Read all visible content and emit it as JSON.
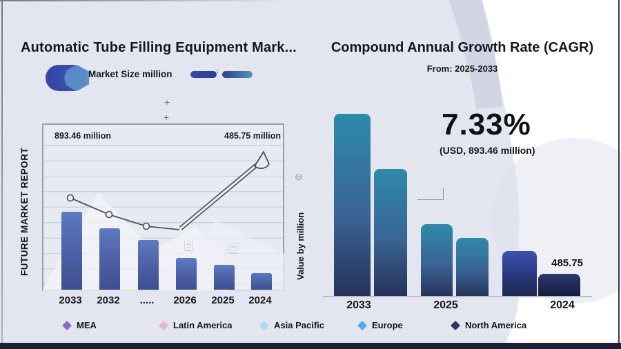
{
  "header_left": {
    "title": "Automatic Tube Filling Equipment Mark...",
    "series_label": "Market Size million",
    "colon": ":"
  },
  "header_right": {
    "title": "Compound Annual Growth Rate (CAGR)",
    "subtitle": "From: 2025-2033",
    "cagr_value": "7.33%",
    "cagr_note": "(USD, 893.46 million)",
    "end_value_label": "485.75"
  },
  "left_chart": {
    "annotation_left": "893.46 million",
    "annotation_right": "485.75 million",
    "ylabel": "Value by million",
    "watermark": "FUTURE MARKET REPORT",
    "plus_top": "+",
    "plus_bottom": "+",
    "minus_icon": "⊖"
  },
  "legend": {
    "items": [
      {
        "label": "MEA",
        "color": "#8a6cbe"
      },
      {
        "label": "Latin America",
        "color": "#dcb6de"
      },
      {
        "label": "Asia Pacific",
        "color": "#a9dcf2"
      },
      {
        "label": "Europe",
        "color": "#58a9e9"
      },
      {
        "label": "North America",
        "color": "#2c3763"
      }
    ]
  },
  "colors": {
    "background": "#e3e5ef",
    "left_bar_top": "#5c7ac2",
    "left_bar_bottom": "#3e4f90",
    "right_bar_teal_top": "#2f8aaa",
    "right_bar_navy_bottom": "#131c3a",
    "footer_strip": "#1d2332"
  },
  "chart_data": [
    {
      "type": "bar",
      "title": "Automatic Tube Filling Equipment Market - Market Size million",
      "categories": [
        "2033",
        "2032",
        ".....",
        "2026",
        "2025",
        "2024"
      ],
      "values": [
        893.46,
        783,
        706,
        586,
        541,
        485.75
      ],
      "values_note": "Only 2033 (893.46 million) and 2024 (485.75 million) are labeled; intermediate values estimated from bar heights",
      "annotations": [
        "893.46 million",
        "485.75 million"
      ],
      "xlabel": "",
      "ylabel": "Value by million",
      "trendline": "markers descend across 2033-2026 then an outlined arrow rises sharply toward the 485.75 million annotation",
      "grid": true,
      "legend_position": "bottom"
    },
    {
      "type": "bar",
      "title": "Compound Annual Growth Rate (CAGR)",
      "subtitle": "From: 2025-2033",
      "cagr": "7.33%",
      "basis": "(USD, 893.46 million)",
      "categories": [
        "2033",
        "2025",
        "2024"
      ],
      "series": [
        {
          "name": "bar-left",
          "relative_heights": [
            1.0,
            0.396,
            0.249
          ]
        },
        {
          "name": "bar-right",
          "relative_heights": [
            0.698,
            0.321,
            0.125
          ]
        }
      ],
      "anchor_label": {
        "category": "2024",
        "value": 485.75
      },
      "grid": false,
      "legend_position": "bottom"
    }
  ]
}
